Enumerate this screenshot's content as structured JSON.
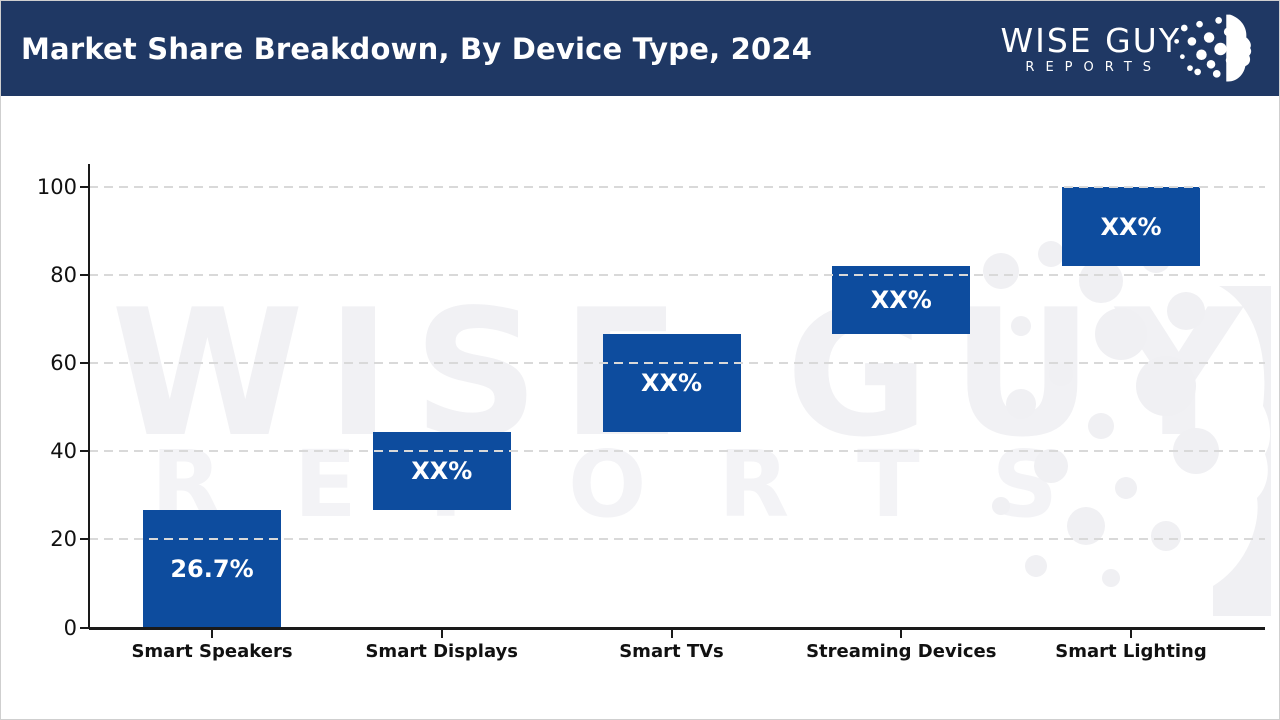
{
  "header": {
    "title": "Market Share Breakdown, By Device Type, 2024",
    "bg_color": "#1f3864",
    "logo": {
      "line1": "WISE GUY",
      "line2": "REPORTS"
    }
  },
  "watermark": {
    "line1": "WISE GUY",
    "line2": "REPORTS"
  },
  "chart_data": {
    "type": "bar",
    "subtype": "waterfall",
    "title": "Market Share Breakdown, By Device Type, 2024",
    "categories": [
      "Smart Speakers",
      "Smart Displays",
      "Smart TVs",
      "Streaming Devices",
      "Smart Lighting"
    ],
    "series": [
      {
        "name": "Market Share",
        "segments": [
          {
            "category": "Smart Speakers",
            "start": 0,
            "end": 26.7,
            "label": "26.7%"
          },
          {
            "category": "Smart Displays",
            "start": 26.7,
            "end": 44.3,
            "label": "XX%"
          },
          {
            "category": "Smart TVs",
            "start": 44.3,
            "end": 66.6,
            "label": "XX%"
          },
          {
            "category": "Streaming Devices",
            "start": 66.6,
            "end": 82.0,
            "label": "XX%"
          },
          {
            "category": "Smart Lighting",
            "start": 82.0,
            "end": 100,
            "label": "XX%"
          }
        ]
      }
    ],
    "xlabel": "",
    "ylabel": "",
    "ylim": [
      0,
      100
    ],
    "yticks": [
      0,
      20,
      40,
      60,
      80,
      100
    ],
    "grid": "horizontal-dashed",
    "legend": "none",
    "bar_color": "#0d4c9e"
  }
}
